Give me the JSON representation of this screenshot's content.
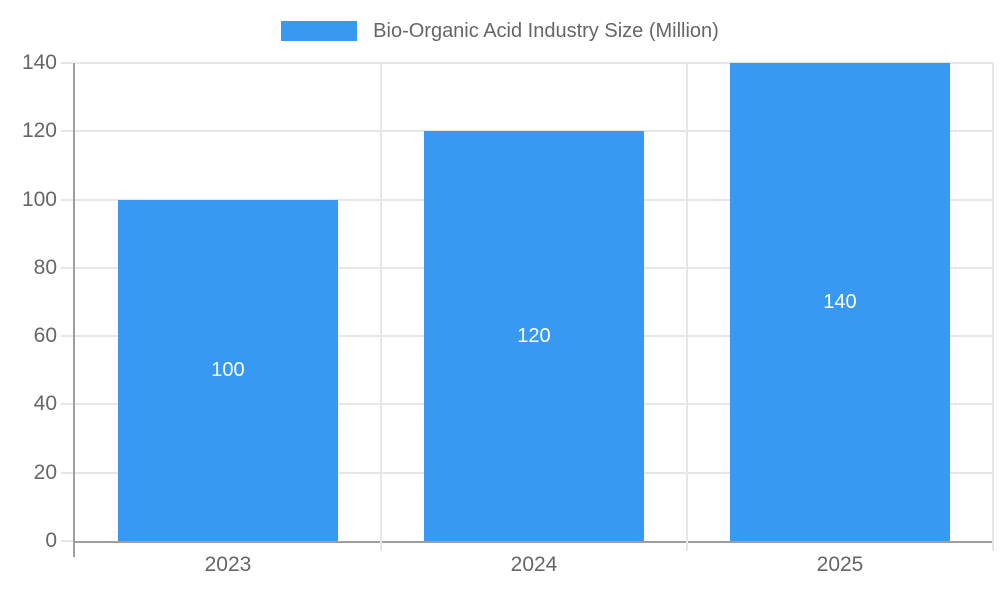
{
  "chart_data": {
    "type": "bar",
    "title": "Bio-Organic Acid Industry Size (Million)",
    "categories": [
      "2023",
      "2024",
      "2025"
    ],
    "series": [
      {
        "name": "Bio-Organic Acid Industry Size (Million)",
        "values": [
          100,
          120,
          140
        ],
        "data_labels": [
          "100",
          "120",
          "140"
        ]
      }
    ],
    "xlabel": "",
    "ylabel": "",
    "ylim": [
      0,
      140
    ],
    "yticks": [
      0,
      20,
      40,
      60,
      80,
      100,
      120,
      140
    ],
    "ytick_labels": [
      "0",
      "20",
      "40",
      "60",
      "80",
      "100",
      "120",
      "140"
    ],
    "grid": true,
    "legend_position": "top-center",
    "bar_width_fraction": 0.72
  },
  "legend": {
    "label": "Bio-Organic Acid Industry Size (Million)"
  },
  "colors": {
    "bar": "#3799F1",
    "bar_label_text": "#ffffff",
    "grid": "#e6e6e6",
    "axis": "#9e9e9e",
    "text": "#666666"
  }
}
